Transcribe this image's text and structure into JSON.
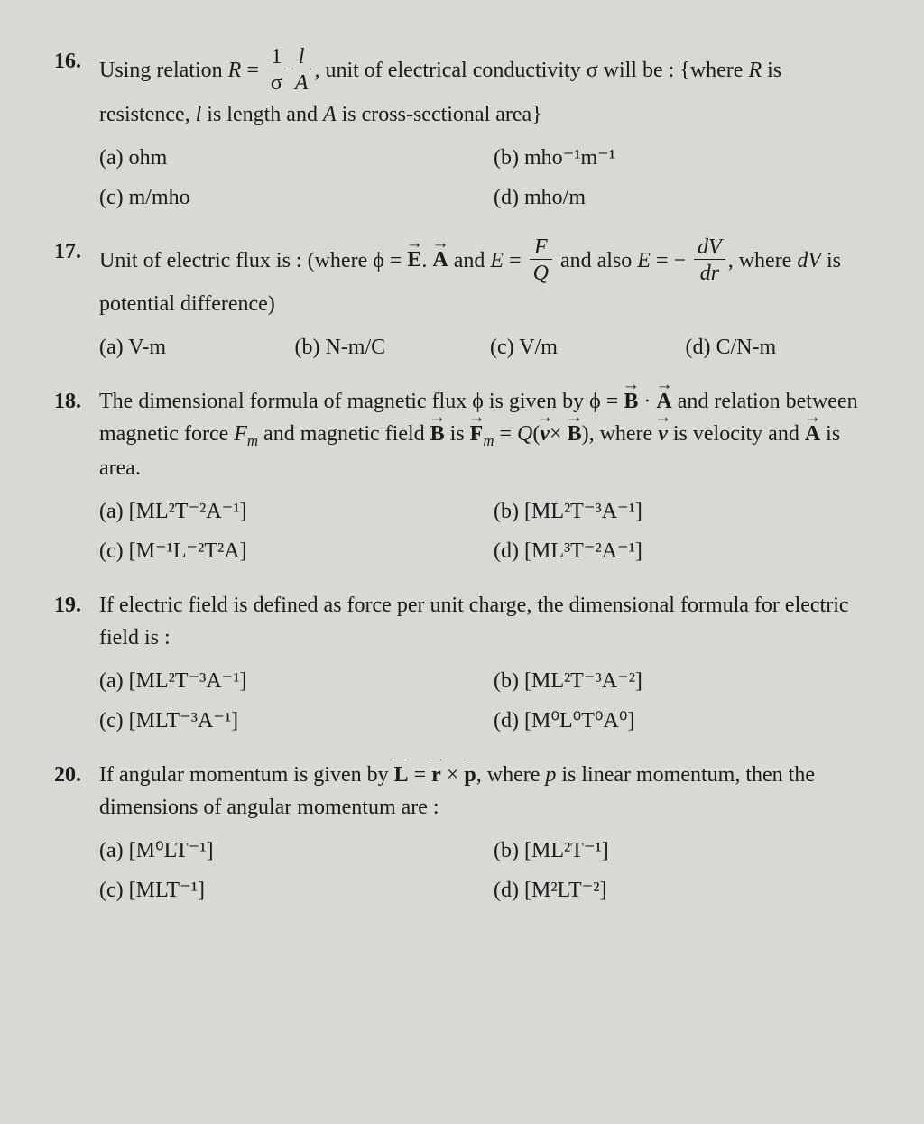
{
  "questions": [
    {
      "num": "16.",
      "text_parts": {
        "p1": "Using relation ",
        "R": "R",
        "eq": " = ",
        "frac1_num": "1",
        "frac1_den": "σ",
        "frac2_num": "l",
        "frac2_den": "A",
        "p2": ", unit of electrical conductivity σ will be : {where ",
        "R2": "R",
        "p3": " is resistence, ",
        "l": "l",
        "p4": " is length and ",
        "A": "A",
        "p5": " is cross-sectional area}"
      },
      "options": {
        "a": "(a) ohm",
        "b": "(b) mho⁻¹m⁻¹",
        "c": "(c) m/mho",
        "d": "(d) mho/m"
      }
    },
    {
      "num": "17.",
      "text_parts": {
        "p1": "Unit of electric flux is : (where ϕ = ",
        "E": "E",
        "dot": ". ",
        "A": "A",
        "p2": " and ",
        "E2": "E",
        "eq": " = ",
        "frac_num": "F",
        "frac_den": "Q",
        "p3": " and also ",
        "E3": "E",
        "eq2": " = − ",
        "frac2_num": "dV",
        "frac2_den": "dr",
        "p4": ", where ",
        "dV": "dV",
        "p5": " is potential difference)"
      },
      "options": {
        "a": "(a) V-m",
        "b": "(b) N-m/C",
        "c": "(c) V/m",
        "d": "(d) C/N-m"
      }
    },
    {
      "num": "18.",
      "text_parts": {
        "p1": "The dimensional formula of magnetic flux ϕ is given by ϕ = ",
        "B": "B",
        "dot": " · ",
        "A": "A",
        "p2": " and relation between magnetic force ",
        "Fm": "F",
        "m_sub": "m",
        "p3": " and magnetic field ",
        "B2": "B",
        "is": " is ",
        "F2": "F",
        "m_sub2": "m",
        "eq": " = ",
        "Q": "Q",
        "paren1": "(",
        "v": "v",
        "cross": "× ",
        "B3": "B",
        "paren2": "), where ",
        "v2": "v",
        "p4": " is velocity and ",
        "A2": "A",
        "p5": " is area."
      },
      "options": {
        "a": "(a) [ML²T⁻²A⁻¹]",
        "b": "(b) [ML²T⁻³A⁻¹]",
        "c": "(c) [M⁻¹L⁻²T²A]",
        "d": "(d) [ML³T⁻²A⁻¹]"
      }
    },
    {
      "num": "19.",
      "text": "If electric field is defined as force per unit charge, the dimensional formula for electric field is :",
      "options": {
        "a": "(a) [ML²T⁻³A⁻¹]",
        "b": "(b) [ML²T⁻³A⁻²]",
        "c": "(c) [MLT⁻³A⁻¹]",
        "d": "(d) [M⁰L⁰T⁰A⁰]"
      }
    },
    {
      "num": "20.",
      "text_parts": {
        "p1": "If angular momentum is given by ",
        "L": "L",
        "eq": " = ",
        "r": "r",
        "cross": " × ",
        "p": "p",
        "p2": ", where ",
        "pvar": "p",
        "p3": " is linear momentum, then the dimensions of angular momentum are :"
      },
      "options": {
        "a": "(a) [M⁰LT⁻¹]",
        "b": "(b) [ML²T⁻¹]",
        "c": "(c) [MLT⁻¹]",
        "d": "(d) [M²LT⁻²]"
      }
    }
  ]
}
